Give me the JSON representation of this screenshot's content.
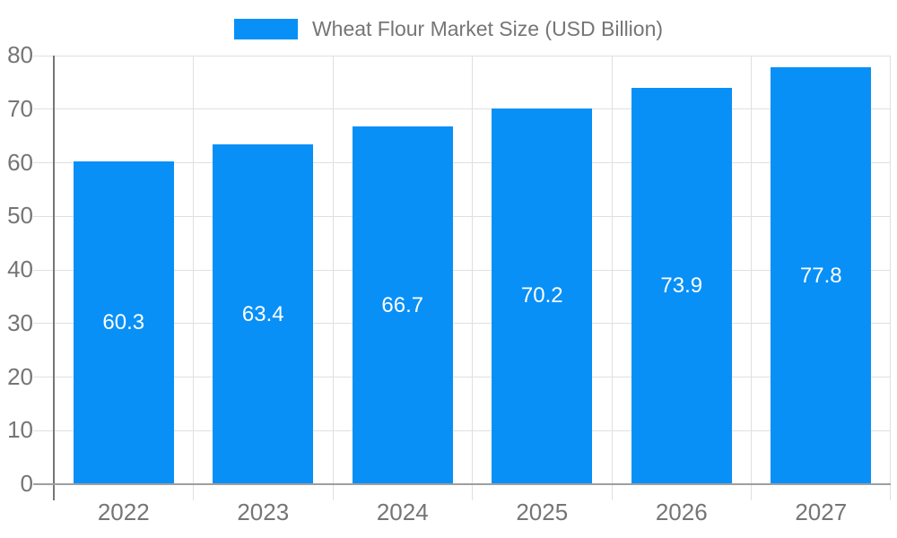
{
  "chart_data": {
    "type": "bar",
    "title": "Wheat Flour Market Size (USD Billion)",
    "categories": [
      "2022",
      "2023",
      "2024",
      "2025",
      "2026",
      "2027"
    ],
    "values": [
      60.3,
      63.4,
      66.7,
      70.2,
      73.9,
      77.8
    ],
    "data_labels": [
      "60.3",
      "63.4",
      "66.7",
      "70.2",
      "73.9",
      "77.8"
    ],
    "xlabel": "",
    "ylabel": "",
    "ylim": [
      0,
      80
    ],
    "yticks": [
      0,
      10,
      20,
      30,
      40,
      50,
      60,
      70,
      80
    ],
    "grid": true,
    "legend_position": "top-center",
    "colors": {
      "bar": "#0890f7",
      "value_label_text": "#ffffff",
      "axis_text": "#757575",
      "gridline": "#e0e0e0",
      "y_axis_line": "#757575",
      "baseline": "#9e9e9e",
      "background": "#ffffff"
    }
  }
}
